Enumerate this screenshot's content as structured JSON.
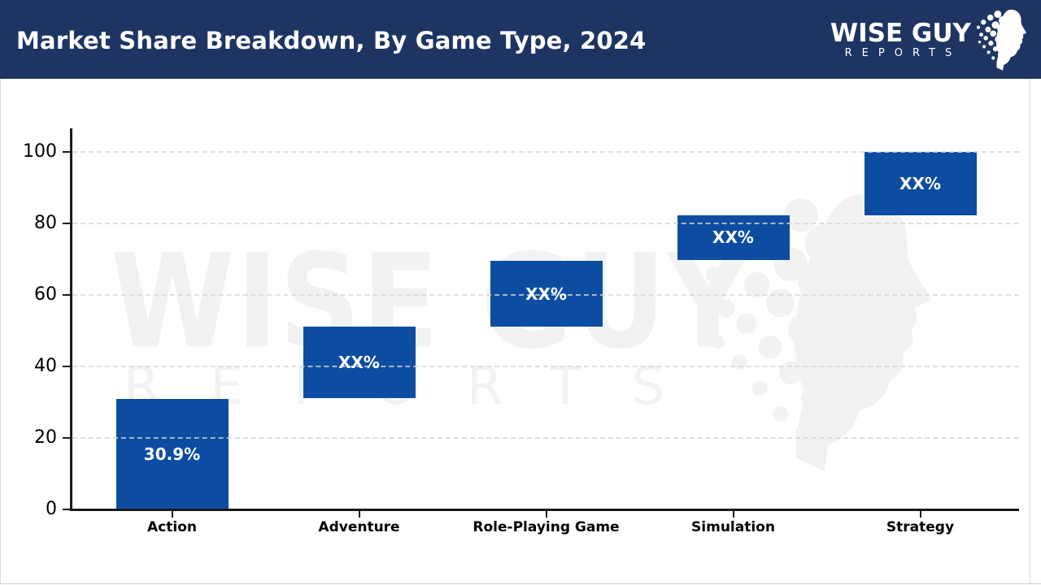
{
  "header": {
    "title": "Market Share Breakdown, By Game Type, 2024",
    "logo": {
      "name": "WISE GUY",
      "sub": "REPORTS"
    }
  },
  "watermark": {
    "name": "WISE GUY",
    "sub": "REPORTS"
  },
  "chart_data": {
    "type": "bar",
    "variant": "floating-waterfall",
    "title": "Market Share Breakdown, By Game Type, 2024",
    "categories": [
      "Action",
      "Adventure",
      "Role-Playing Game",
      "Simulation",
      "Strategy"
    ],
    "segments": [
      {
        "category": "Action",
        "start": 0,
        "end": 30.9,
        "label": "30.9%"
      },
      {
        "category": "Adventure",
        "start": 31,
        "end": 51,
        "label": "XX%"
      },
      {
        "category": "Role-Playing Game",
        "start": 51,
        "end": 69.5,
        "label": "XX%"
      },
      {
        "category": "Simulation",
        "start": 69.7,
        "end": 82.2,
        "label": "XX%"
      },
      {
        "category": "Strategy",
        "start": 82.2,
        "end": 100,
        "label": "XX%"
      }
    ],
    "xlabel": "",
    "ylabel": "",
    "ylim": [
      0,
      100
    ],
    "yticks": [
      0,
      20,
      40,
      60,
      80,
      100
    ],
    "grid": "horizontal-dashed",
    "legend": "none",
    "colors": {
      "page_bg": "#ffffff",
      "header_bg": "#1e3563",
      "bar": "#0c4da2",
      "bar_label": "#ffffff",
      "axis": "#1a1a1a",
      "tick_label": "#000000",
      "gridline": "rgba(213,213,213,0.78)",
      "watermark": "#f2f2f2"
    }
  }
}
